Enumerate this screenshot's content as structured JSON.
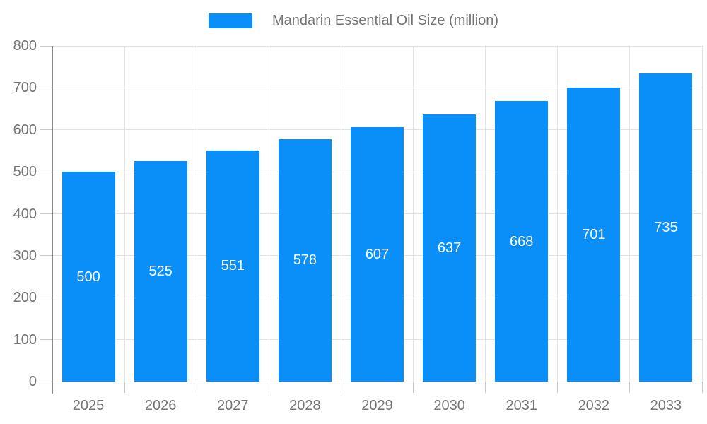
{
  "chart_data": {
    "type": "bar",
    "title": "Mandarin Essential Oil Size (million)",
    "categories": [
      "2025",
      "2026",
      "2027",
      "2028",
      "2029",
      "2030",
      "2031",
      "2032",
      "2033"
    ],
    "values": [
      500,
      525,
      551,
      578,
      607,
      637,
      668,
      701,
      735
    ],
    "xlabel": "",
    "ylabel": "",
    "ylim": [
      0,
      800
    ],
    "ytick_step": 100,
    "grid": true,
    "legend_position": "top-center",
    "bar_color": "#0a8ef8",
    "value_label_color": "#ffffff",
    "axis_text_color": "#757575",
    "gridline_color": "#e3e3e3"
  }
}
